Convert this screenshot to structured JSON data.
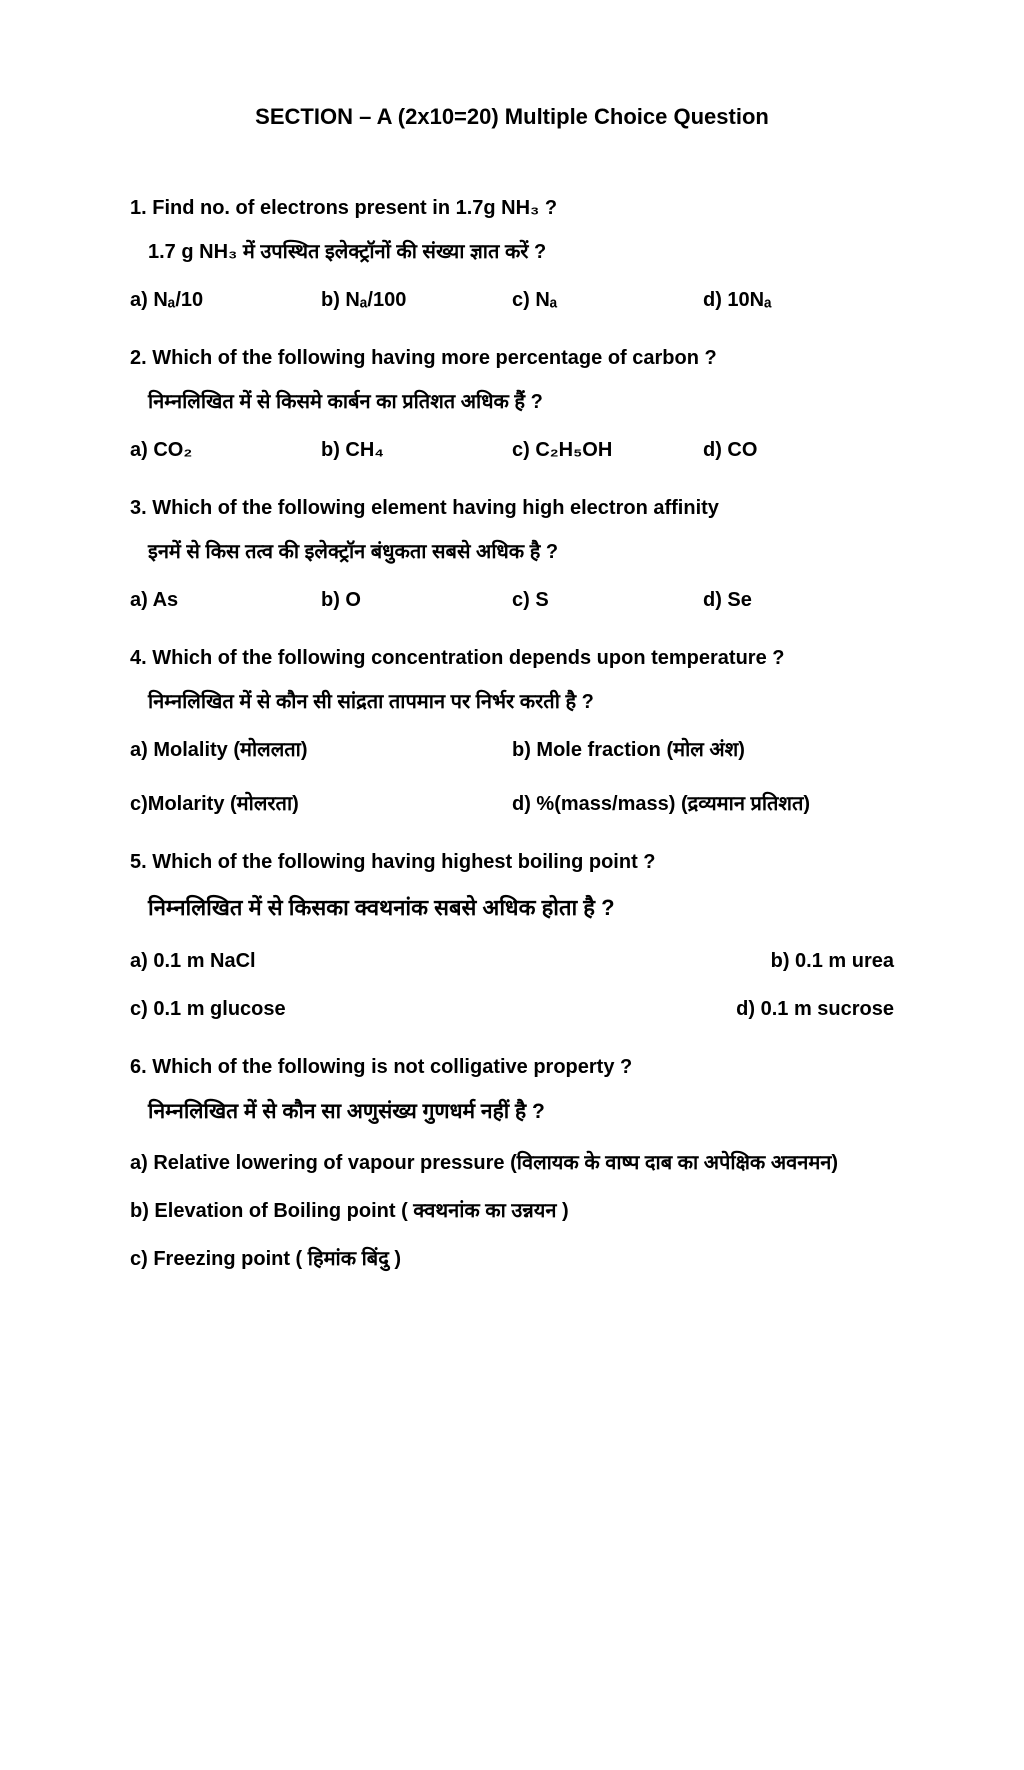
{
  "section_title": "SECTION – A (2x10=20) Multiple Choice Question",
  "q1": {
    "en": "1. Find no. of electrons present in 1.7g NH₃ ?",
    "hi": "1.7 g NH₃ में उपस्थित इलेक्ट्रॉनों की संख्या ज्ञात करें ?",
    "a": "a) Nₐ/10",
    "b": "b) Nₐ/100",
    "c": "c) Nₐ",
    "d": "d) 10Nₐ"
  },
  "q2": {
    "en": "2. Which of the following having more percentage of carbon ?",
    "hi": "निम्नलिखित में से किसमे कार्बन का प्रतिशत अधिक हैं ?",
    "a": "a) CO₂",
    "b": "b) CH₄",
    "c": "c) C₂H₅OH",
    "d": "d) CO"
  },
  "q3": {
    "en": "3. Which of the following element having high electron affinity",
    "hi": "इनमें से किस तत्व की इलेक्ट्रॉन बंधुकता सबसे अधिक है ?",
    "a": "a) As",
    "b": "b) O",
    "c": "c) S",
    "d": "d) Se"
  },
  "q4": {
    "en": "4. Which of the following concentration depends upon temperature ?",
    "hi": "निम्नलिखित में से कौन सी सांद्रता तापमान पर निर्भर करती है ?",
    "a": "a) Molality (मोललता)",
    "b": "b) Mole fraction (मोल अंश)",
    "c": "c)Molarity (मोलरता)",
    "d": "d) %(mass/mass) (द्रव्यमान प्रतिशत)"
  },
  "q5": {
    "en": "5. Which of the following having highest boiling point ?",
    "hi": "निम्नलिखित में से किसका क्वथनांक सबसे अधिक होता है ?",
    "a": "a) 0.1 m NaCl",
    "b": "b) 0.1 m urea",
    "c": "c) 0.1 m glucose",
    "d": "d) 0.1 m sucrose"
  },
  "q6": {
    "en": "6. Which of the following is not colligative property ?",
    "hi": "निम्नलिखित में से कौन सा अणुसंख्य गुणधर्म नहीं है ?",
    "a": "a) Relative lowering of vapour pressure (विलायक के वाष्प दाब का अपेक्षिक अवनमन)",
    "b": "b) Elevation of Boiling point ( क्वथनांक का उन्नयन )",
    "c": "c) Freezing point ( हिमांक बिंदु )"
  }
}
